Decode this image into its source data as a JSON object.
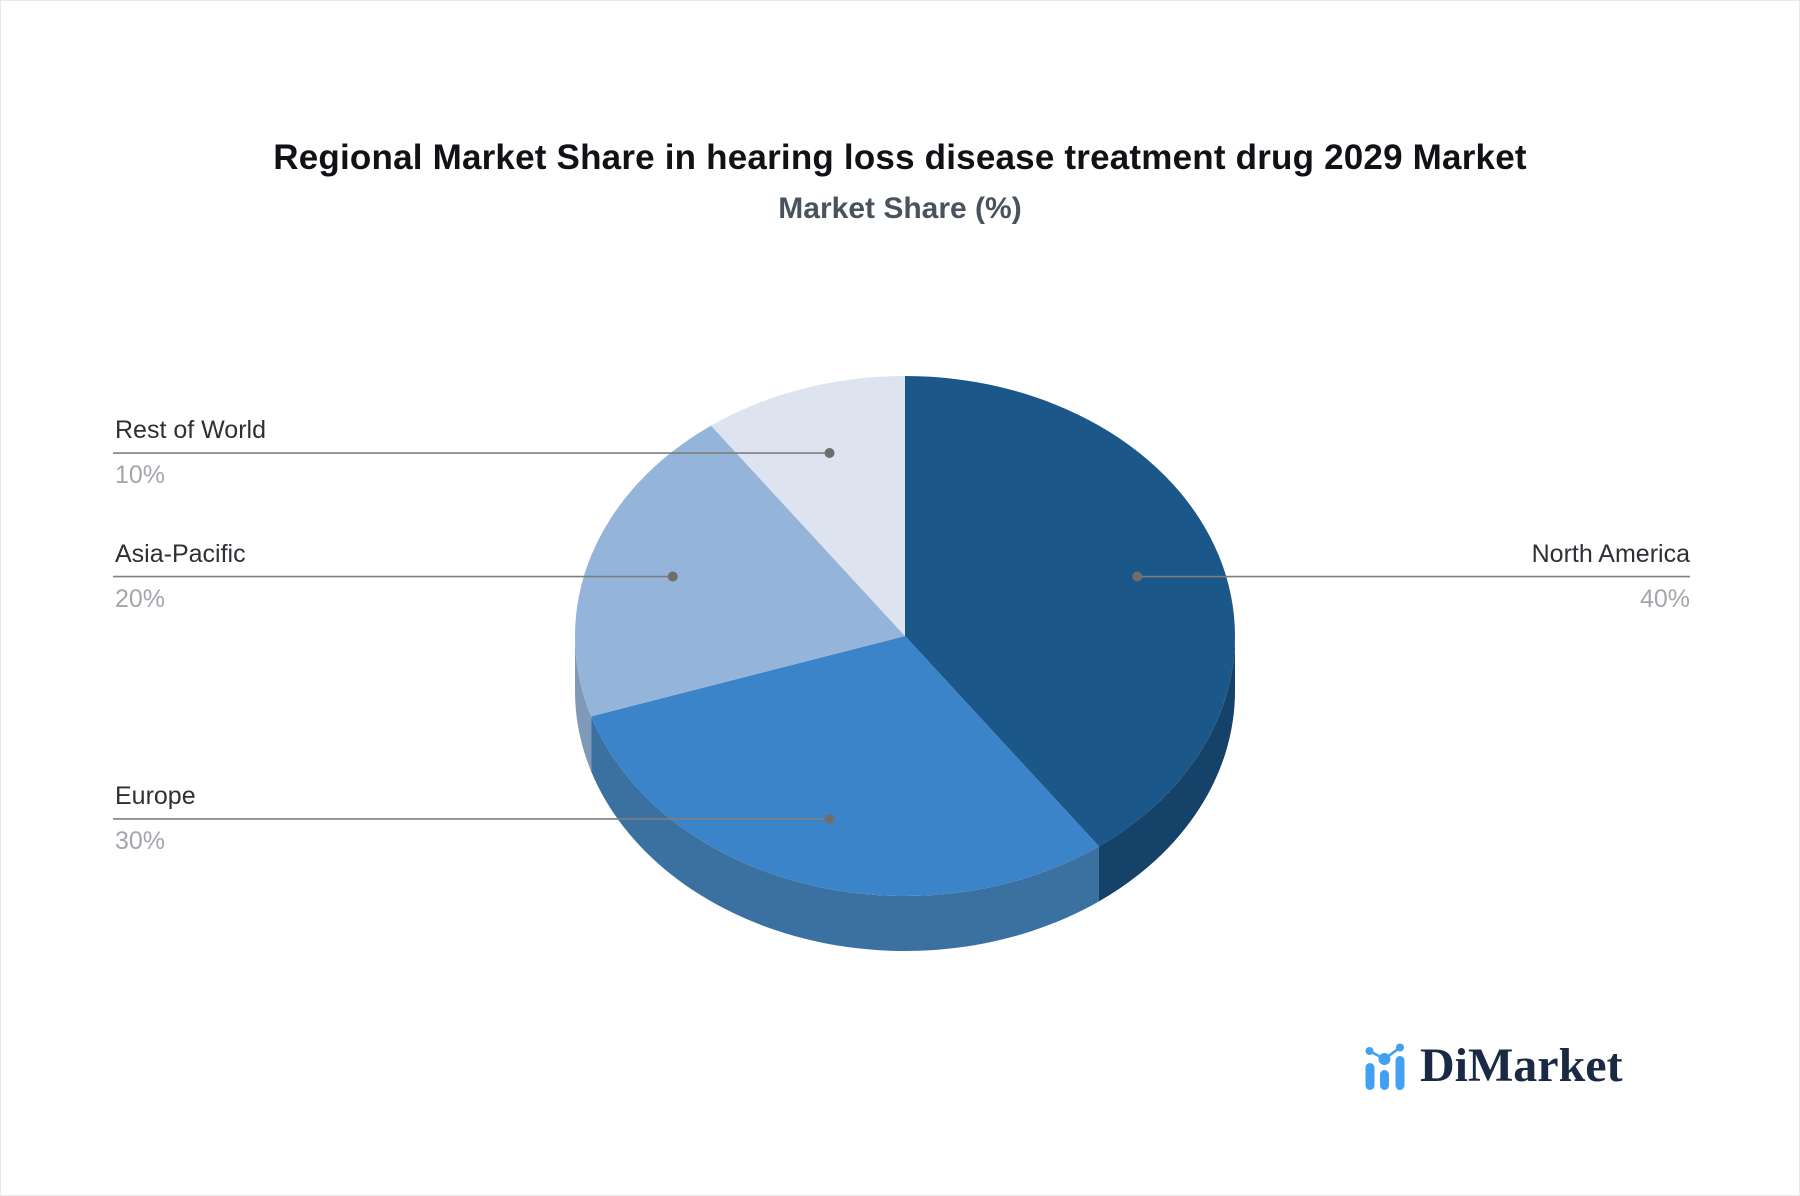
{
  "title": "Regional Market Share in hearing loss disease treatment drug 2029 Market",
  "subtitle": "Market Share (%)",
  "chart_data": {
    "type": "pie",
    "style": "3d",
    "title": "Regional Market Share in hearing loss disease treatment drug 2029 Market",
    "subtitle": "Market Share (%)",
    "unit": "%",
    "start_angle_deg": 0,
    "direction": "clockwise",
    "legend_position": "none",
    "labels_layout": "callout-lines",
    "slices": [
      {
        "label": "North America",
        "value": 40,
        "pct_label": "40%",
        "color": "#1b5788",
        "depth_color": "#154268",
        "callout_side": "right"
      },
      {
        "label": "Europe",
        "value": 30,
        "pct_label": "30%",
        "color": "#3b84c9",
        "depth_color": "#3a71a1",
        "callout_side": "left"
      },
      {
        "label": "Asia-Pacific",
        "value": 20,
        "pct_label": "20%",
        "color": "#94b5d9",
        "depth_color": "#8099b6",
        "callout_side": "left"
      },
      {
        "label": "Rest of World",
        "value": 10,
        "pct_label": "10%",
        "color": "#dde4ef",
        "depth_color": "#c3cfde",
        "callout_side": "left"
      }
    ]
  },
  "callout_style": {
    "line_color": "#7f7f7f",
    "dot_color": "#6e6e6e",
    "label_color": "#2d3135",
    "pct_color": "#a3a6ab"
  },
  "logo": {
    "text": "DiMarket",
    "icon": "bar-line-chart-icon",
    "icon_color": "#42a0f0",
    "text_color": "#1b2a44"
  }
}
